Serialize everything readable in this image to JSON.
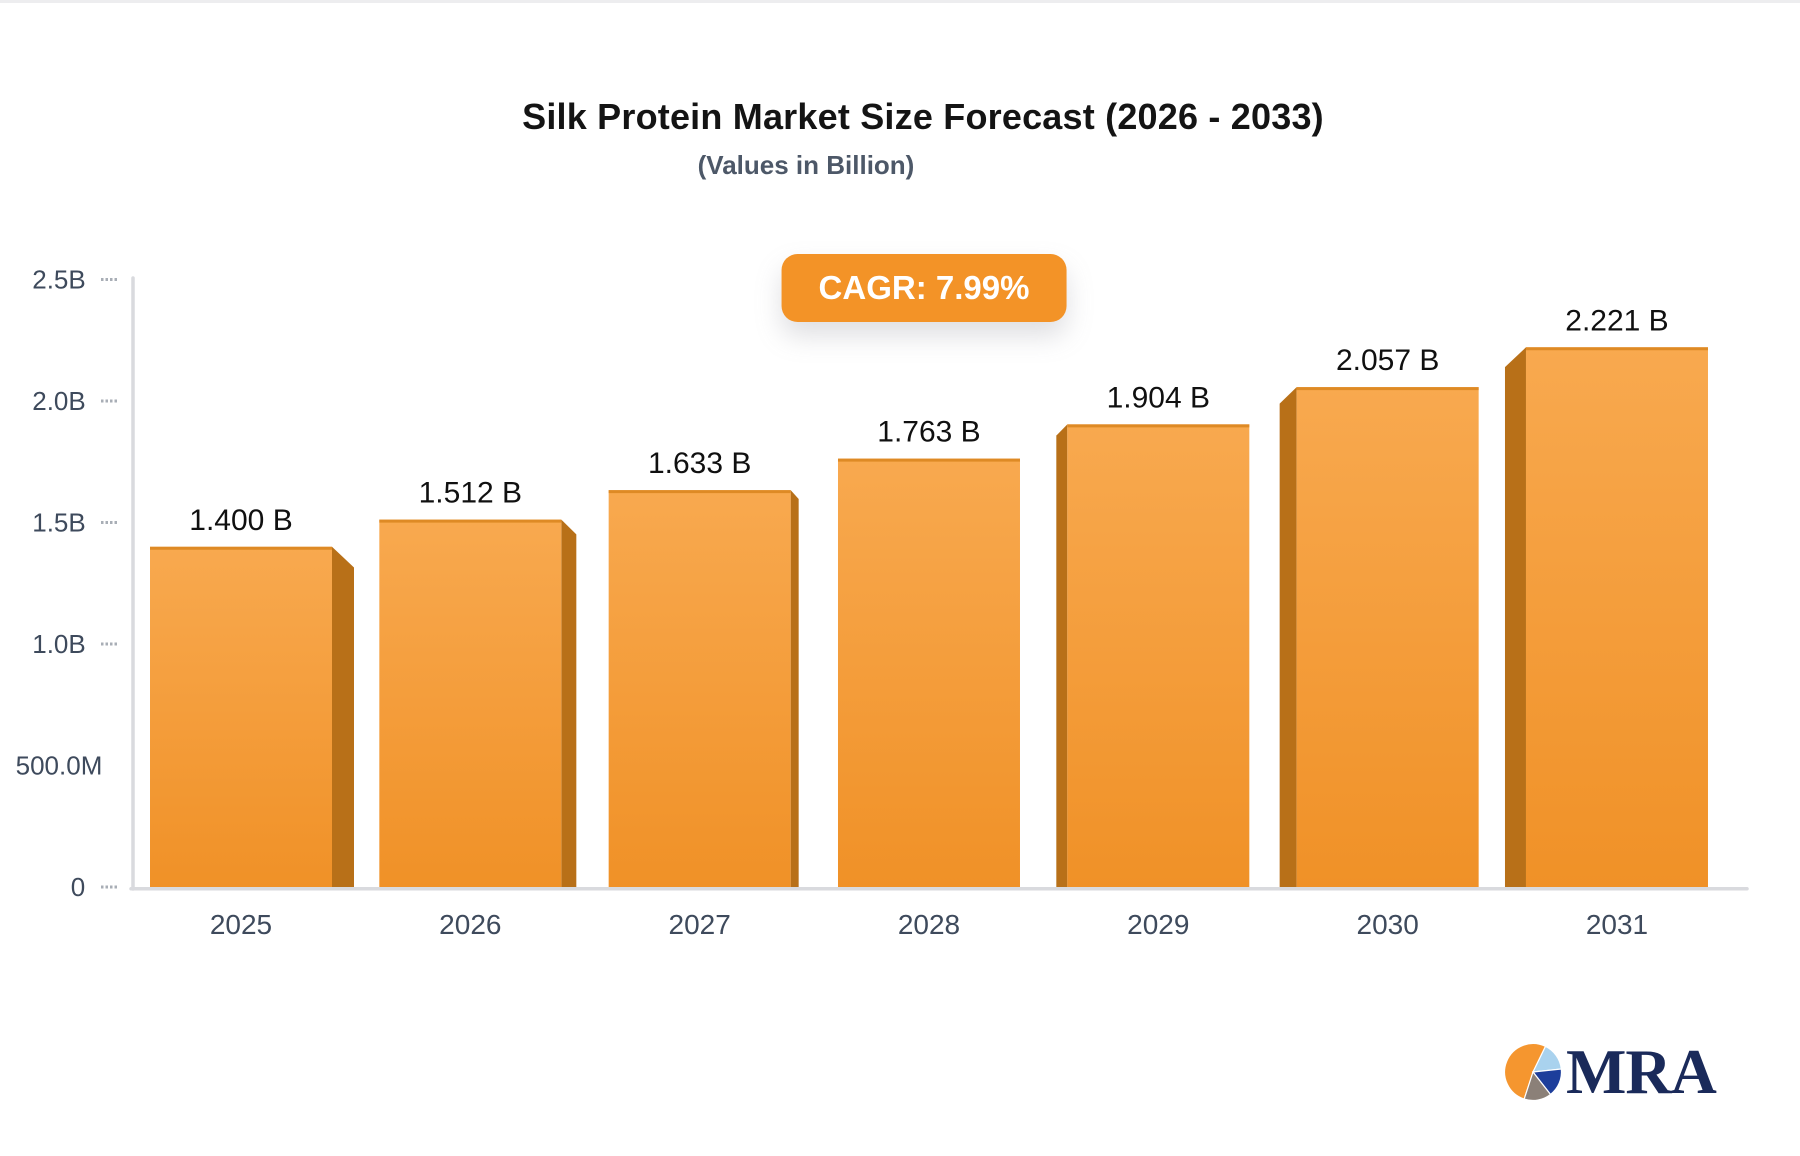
{
  "header": {
    "title": "Silk Protein Market Size Forecast (2026 - 2033)",
    "subtitle": "(Values in Billion)",
    "cagr_label": "CAGR: 7.99%"
  },
  "chart_data": {
    "type": "bar",
    "title": "Silk Protein Market Size Forecast (2026 - 2033)",
    "subtitle": "(Values in Billion)",
    "cagr": "7.99%",
    "categories": [
      "2025",
      "2026",
      "2027",
      "2028",
      "2029",
      "2030",
      "2031"
    ],
    "values": [
      1.4,
      1.512,
      1.633,
      1.763,
      1.904,
      2.057,
      2.221
    ],
    "value_labels": [
      "1.400 B",
      "1.512 B",
      "1.633 B",
      "1.763 B",
      "1.904 B",
      "2.057 B",
      "2.221 B"
    ],
    "xlabel": "",
    "ylabel": "",
    "ylim": [
      0,
      2.5
    ],
    "grid": false,
    "legend": false,
    "y_ticks": [
      {
        "label": "2.5B",
        "value": 2.5,
        "tick": true
      },
      {
        "label": "2.0B",
        "value": 2.0,
        "tick": true
      },
      {
        "label": "1.5B",
        "value": 1.5,
        "tick": true
      },
      {
        "label": "1.0B",
        "value": 1.0,
        "tick": true
      },
      {
        "label": "500.0M",
        "value": 0.5,
        "tick": false
      },
      {
        "label": "0",
        "value": 0.0,
        "tick": true
      }
    ]
  },
  "colors": {
    "bar_face_top": "#f8a94f",
    "bar_face_bottom": "#f09127",
    "bar_side": "#b87018",
    "bar_top_edge": "#de8a25",
    "axis": "#d9dade",
    "tick": "#a8aeb6",
    "axis_label": "#3e4a5c",
    "value_label": "#101010",
    "badge_bg": "#f39327",
    "badge_text": "#ffffff",
    "logo_navy": "#1a2a5a"
  },
  "logo": {
    "text": "MRA"
  }
}
